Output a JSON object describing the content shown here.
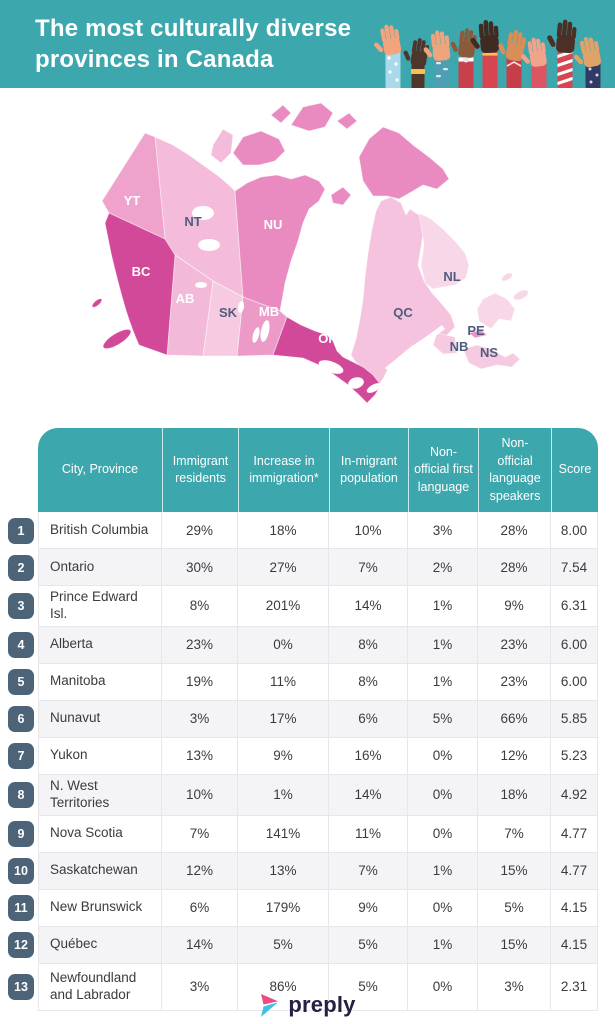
{
  "palette": {
    "banner_teal": "#3CA7AD",
    "badge_slate": "#4C6378",
    "row_alt_gray": "#F4F4F6",
    "body_text": "#3B3B3D",
    "map_dark_magenta": "#D2499A",
    "map_label_dark": "#4F5D7E",
    "logo_pink": "#ED4A86",
    "logo_blue": "#3EC1E6",
    "logo_navy": "#232043"
  },
  "header": {
    "title_line1": "The most culturally diverse",
    "title_line2": "provinces in Canada",
    "illustration": "raised-hands-icon"
  },
  "map": {
    "title": "Choropleth map of Canada shaded by cultural-diversity score",
    "provinces": [
      {
        "code": "YT",
        "color": "#EFA3CC",
        "label_color": "#FFFFFF"
      },
      {
        "code": "NT",
        "color": "#F4BCDA",
        "label_color": "#4F5D7E"
      },
      {
        "code": "NU",
        "color": "#E98BC1",
        "label_color": "#FFFFFF"
      },
      {
        "code": "BC",
        "color": "#D2499A",
        "label_color": "#FFFFFF"
      },
      {
        "code": "AB",
        "color": "#F2BAD8",
        "label_color": "#FFFFFF"
      },
      {
        "code": "SK",
        "color": "#F6CBE2",
        "label_color": "#4F5D7E"
      },
      {
        "code": "MB",
        "color": "#EC9BC9",
        "label_color": "#FFFFFF"
      },
      {
        "code": "ON",
        "color": "#D2499A",
        "label_color": "#FFFFFF"
      },
      {
        "code": "QC",
        "color": "#F5C3DE",
        "label_color": "#4F5D7E"
      },
      {
        "code": "NL",
        "color": "#F8D7E8",
        "label_color": "#4F5D7E"
      },
      {
        "code": "PE",
        "color": "#EC93C5",
        "label_color": "#4F5D7E"
      },
      {
        "code": "NB",
        "color": "#F6CBE2",
        "label_color": "#4F5D7E"
      },
      {
        "code": "NS",
        "color": "#F6CBE2",
        "label_color": "#4F5D7E"
      }
    ]
  },
  "table": {
    "columns": [
      "City, Province",
      "Immigrant residents",
      "Increase in immigration*",
      "In-migrant population",
      "Non-official first language",
      "Non-official language speakers",
      "Score"
    ],
    "rows": [
      {
        "rank": "1",
        "cells": [
          "British Columbia",
          "29%",
          "18%",
          "10%",
          "3%",
          "28%",
          "8.00"
        ]
      },
      {
        "rank": "2",
        "cells": [
          "Ontario",
          "30%",
          "27%",
          "7%",
          "2%",
          "28%",
          "7.54"
        ]
      },
      {
        "rank": "3",
        "cells": [
          "Prince Edward Isl.",
          "8%",
          "201%",
          "14%",
          "1%",
          "9%",
          "6.31"
        ]
      },
      {
        "rank": "4",
        "cells": [
          "Alberta",
          "23%",
          "0%",
          "8%",
          "1%",
          "23%",
          "6.00"
        ]
      },
      {
        "rank": "5",
        "cells": [
          "Manitoba",
          "19%",
          "11%",
          "8%",
          "1%",
          "23%",
          "6.00"
        ]
      },
      {
        "rank": "6",
        "cells": [
          "Nunavut",
          "3%",
          "17%",
          "6%",
          "5%",
          "66%",
          "5.85"
        ]
      },
      {
        "rank": "7",
        "cells": [
          "Yukon",
          "13%",
          "9%",
          "16%",
          "0%",
          "12%",
          "5.23"
        ]
      },
      {
        "rank": "8",
        "cells": [
          "N. West Territories",
          "10%",
          "1%",
          "14%",
          "0%",
          "18%",
          "4.92"
        ]
      },
      {
        "rank": "9",
        "cells": [
          "Nova Scotia",
          "7%",
          "141%",
          "11%",
          "0%",
          "7%",
          "4.77"
        ]
      },
      {
        "rank": "10",
        "cells": [
          "Saskatchewan",
          "12%",
          "13%",
          "7%",
          "1%",
          "15%",
          "4.77"
        ]
      },
      {
        "rank": "11",
        "cells": [
          "New Brunswick",
          "6%",
          "179%",
          "9%",
          "0%",
          "5%",
          "4.15"
        ]
      },
      {
        "rank": "12",
        "cells": [
          "Québec",
          "14%",
          "5%",
          "5%",
          "1%",
          "15%",
          "4.15"
        ]
      },
      {
        "rank": "13",
        "cells": [
          "Newfoundland and Labrador",
          "3%",
          "86%",
          "5%",
          "0%",
          "3%",
          "2.31"
        ]
      }
    ]
  },
  "footer": {
    "logo_text": "preply"
  },
  "chart_data": [
    {
      "type": "table",
      "title": "The most culturally diverse provinces in Canada",
      "columns": [
        "City, Province",
        "Immigrant residents",
        "Increase in immigration*",
        "In-migrant population",
        "Non-official first language",
        "Non-official language speakers",
        "Score"
      ],
      "rows": [
        [
          "British Columbia",
          "29%",
          "18%",
          "10%",
          "3%",
          "28%",
          "8.00"
        ],
        [
          "Ontario",
          "30%",
          "27%",
          "7%",
          "2%",
          "28%",
          "7.54"
        ],
        [
          "Prince Edward Isl.",
          "8%",
          "201%",
          "14%",
          "1%",
          "9%",
          "6.31"
        ],
        [
          "Alberta",
          "23%",
          "0%",
          "8%",
          "1%",
          "23%",
          "6.00"
        ],
        [
          "Manitoba",
          "19%",
          "11%",
          "8%",
          "1%",
          "23%",
          "6.00"
        ],
        [
          "Nunavut",
          "3%",
          "17%",
          "6%",
          "5%",
          "66%",
          "5.85"
        ],
        [
          "Yukon",
          "13%",
          "9%",
          "16%",
          "0%",
          "12%",
          "5.23"
        ],
        [
          "N. West Territories",
          "10%",
          "1%",
          "14%",
          "0%",
          "18%",
          "4.92"
        ],
        [
          "Nova Scotia",
          "7%",
          "141%",
          "11%",
          "0%",
          "7%",
          "4.77"
        ],
        [
          "Saskatchewan",
          "12%",
          "13%",
          "7%",
          "1%",
          "15%",
          "4.77"
        ],
        [
          "New Brunswick",
          "6%",
          "179%",
          "9%",
          "0%",
          "5%",
          "4.15"
        ],
        [
          "Québec",
          "14%",
          "5%",
          "5%",
          "1%",
          "15%",
          "4.15"
        ],
        [
          "Newfoundland and Labrador",
          "3%",
          "86%",
          "5%",
          "0%",
          "3%",
          "2.31"
        ]
      ]
    },
    {
      "type": "heatmap",
      "subtype": "choropleth-map-of-canada",
      "regions": [
        "YT",
        "NT",
        "NU",
        "BC",
        "AB",
        "SK",
        "MB",
        "ON",
        "QC",
        "NL",
        "PE",
        "NB",
        "NS"
      ],
      "shading_note": "darker pink = higher diversity score; BC and ON darkest",
      "region_colors": [
        "#EFA3CC",
        "#F4BCDA",
        "#E98BC1",
        "#D2499A",
        "#F2BAD8",
        "#F6CBE2",
        "#EC9BC9",
        "#D2499A",
        "#F5C3DE",
        "#F8D7E8",
        "#EC93C5",
        "#F6CBE2",
        "#F6CBE2"
      ]
    }
  ]
}
